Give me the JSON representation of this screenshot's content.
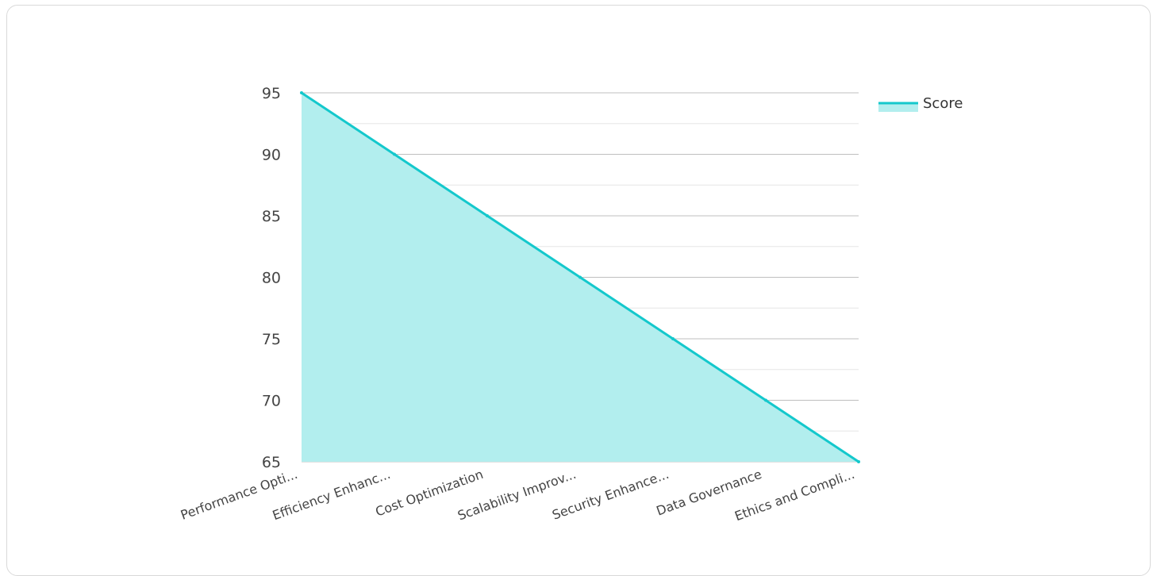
{
  "chart_data": {
    "type": "area",
    "categories": [
      "Performance Opti...",
      "Efficiency Enhanc...",
      "Cost Optimization",
      "Scalability Improv...",
      "Security Enhance...",
      "Data Governance",
      "Ethics and Compli..."
    ],
    "series": [
      {
        "name": "Score",
        "values": [
          95,
          90,
          85,
          80,
          75,
          70,
          65
        ]
      }
    ],
    "ylim": [
      65,
      95
    ],
    "yticks": [
      65,
      70,
      75,
      80,
      85,
      90,
      95
    ],
    "grid": true,
    "legend": "top-right",
    "colors": {
      "line": "#14c8cc",
      "fill": "#b2eeee",
      "grid_major": "#bfbfbf",
      "grid_minor": "#e6e6e6"
    }
  }
}
